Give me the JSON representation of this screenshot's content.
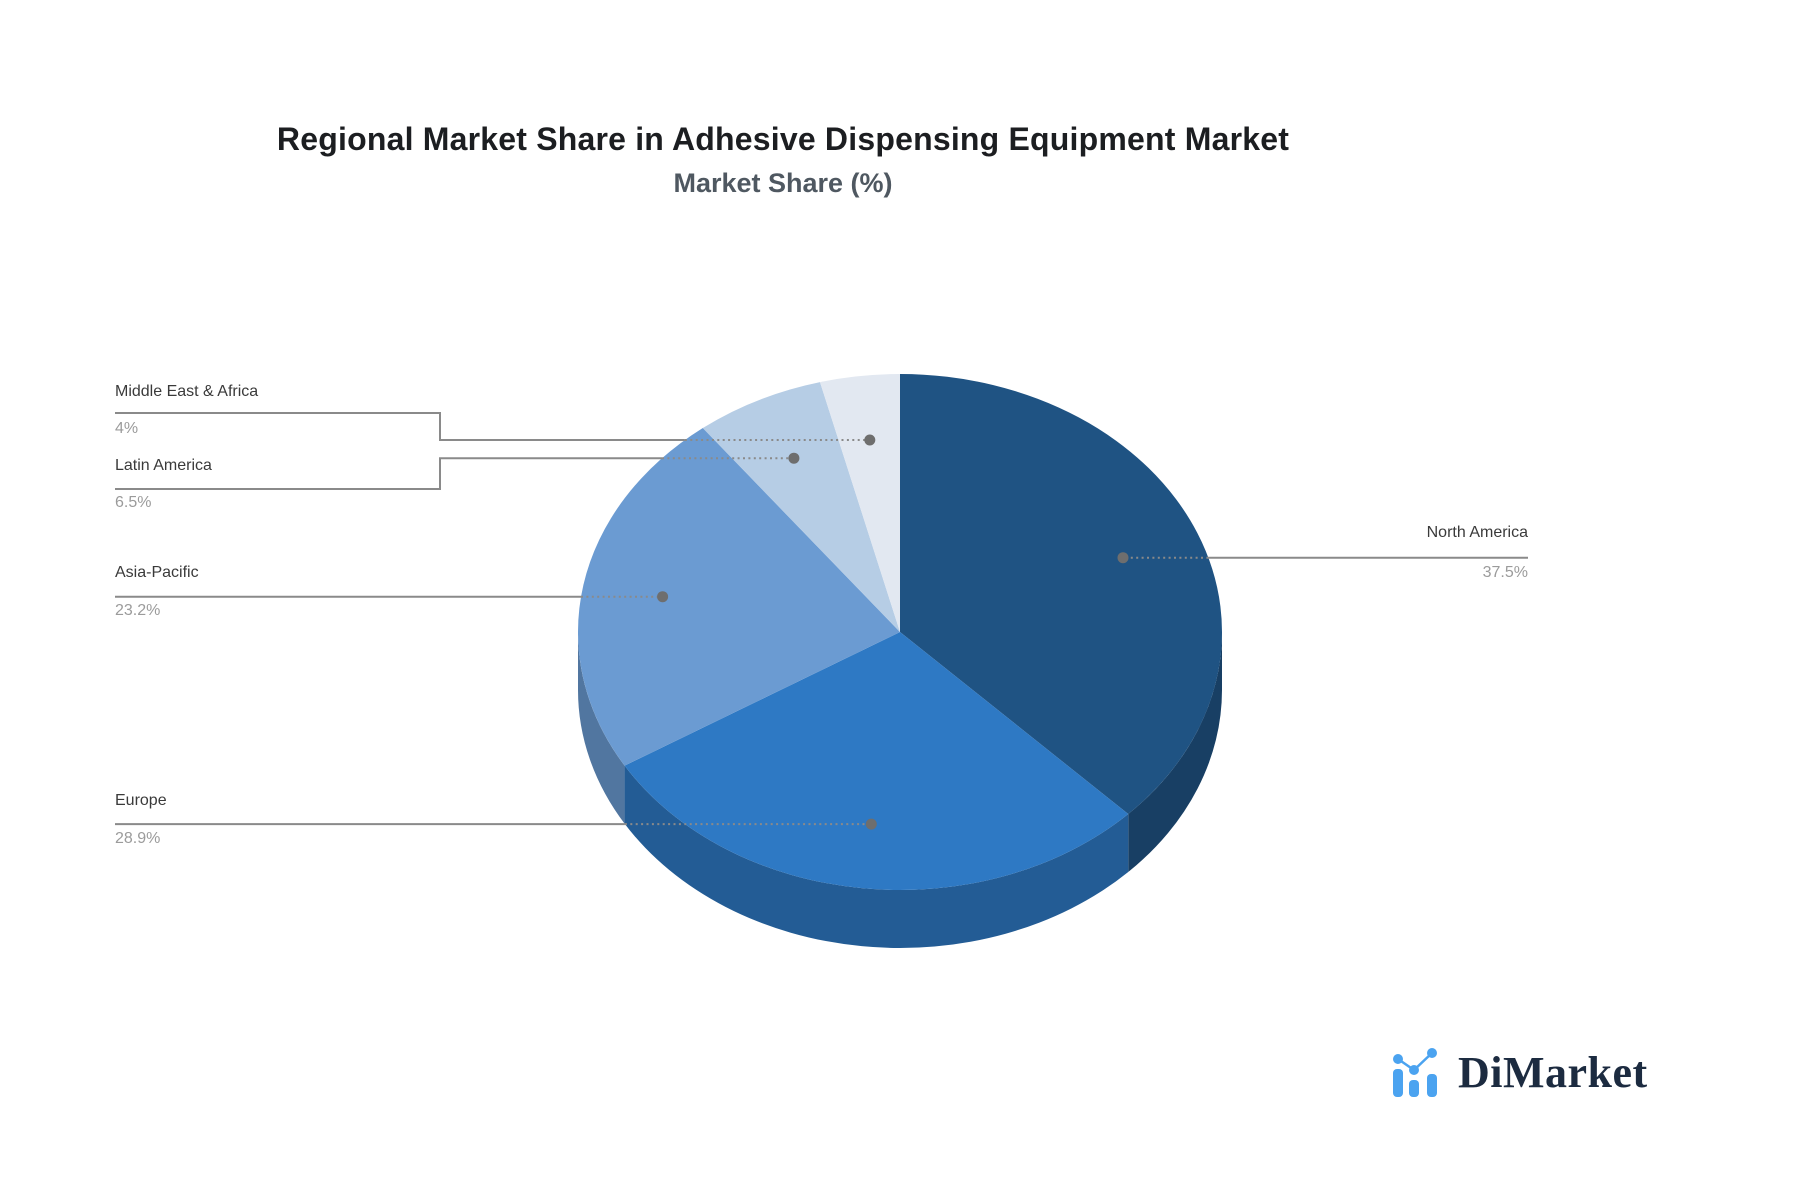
{
  "title": "Regional Market Share in Adhesive Dispensing Equipment Market",
  "subtitle": "Market Share (%)",
  "brand": {
    "name": "DiMarket",
    "icon": "bar-chart-trend-icon",
    "icon_color": "#4ba3f0",
    "text_color": "#1c2b40"
  },
  "chart_data": {
    "type": "pie",
    "title": "Regional Market Share in Adhesive Dispensing Equipment Market",
    "subtitle": "Market Share (%)",
    "unit": "%",
    "effect": "3d",
    "direction": "clockwise",
    "start_angle_deg": 0,
    "labels_style": "callout",
    "legend_position": "none",
    "slices": [
      {
        "label": "North America",
        "value": 37.5,
        "display": "37.5%",
        "color": "#1f5383"
      },
      {
        "label": "Europe",
        "value": 28.9,
        "display": "28.9%",
        "color": "#2e79c4"
      },
      {
        "label": "Asia-Pacific",
        "value": 23.2,
        "display": "23.2%",
        "color": "#6b9bd2"
      },
      {
        "label": "Latin America",
        "value": 6.5,
        "display": "6.5%",
        "color": "#b6cde5"
      },
      {
        "label": "Middle East & Africa",
        "value": 4,
        "display": "4%",
        "color": "#e2e8f1"
      }
    ],
    "leader_line_color": "#8a8a8a",
    "leader_dot_color": "#6e6e6e",
    "label_color": "#3a3a3a",
    "value_color": "#9b9b9b",
    "background_color": "#ffffff"
  }
}
